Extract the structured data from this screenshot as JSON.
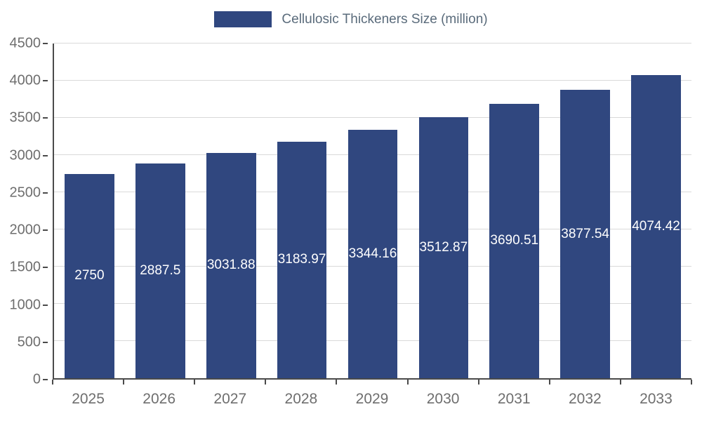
{
  "legend": {
    "label": "Cellulosic Thickeners Size (million)",
    "swatch_color": "#30477f"
  },
  "chart_data": {
    "type": "bar",
    "title": "Cellulosic Thickeners Size (million)",
    "categories": [
      "2025",
      "2026",
      "2027",
      "2028",
      "2029",
      "2030",
      "2031",
      "2032",
      "2033"
    ],
    "values": [
      2750,
      2887.5,
      3031.88,
      3183.97,
      3344.16,
      3512.87,
      3690.51,
      3877.54,
      4074.42
    ],
    "value_labels": [
      "2750",
      "2887.5",
      "3031.88",
      "3183.97",
      "3344.16",
      "3512.87",
      "3690.51",
      "3877.54",
      "4074.42"
    ],
    "xlabel": "",
    "ylabel": "",
    "ylim": [
      0,
      4500
    ],
    "ytick_step": 500,
    "ytick_labels": [
      "0",
      "500",
      "1000",
      "1500",
      "2000",
      "2500",
      "3000",
      "3500",
      "4000",
      "4500"
    ],
    "grid": true,
    "legend_position": "top",
    "bar_color": "#30477f",
    "value_label_color": "#ffffff"
  }
}
